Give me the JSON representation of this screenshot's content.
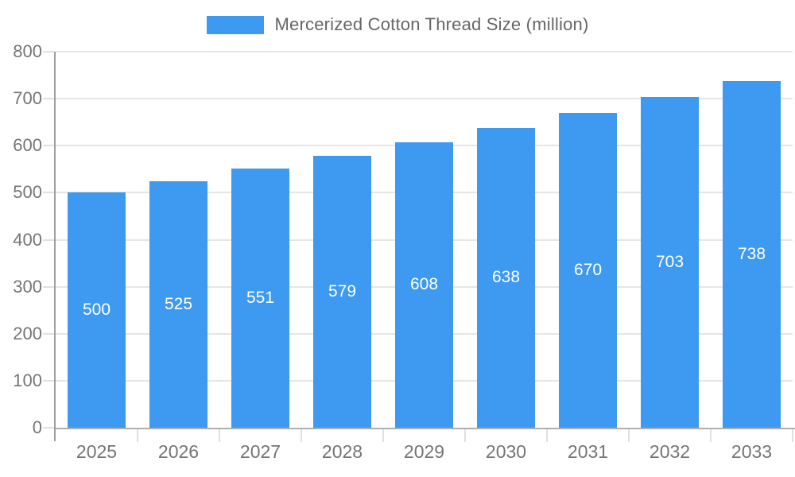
{
  "chart_data": {
    "type": "bar",
    "title": "Mercerized Cotton Thread Size (million)",
    "categories": [
      "2025",
      "2026",
      "2027",
      "2028",
      "2029",
      "2030",
      "2031",
      "2032",
      "2033"
    ],
    "values": [
      500,
      525,
      551,
      579,
      608,
      638,
      670,
      703,
      738
    ],
    "xlabel": "",
    "ylabel": "",
    "ylim": [
      0,
      800
    ],
    "ytick_step": 100,
    "grid": true,
    "legend_position": "top",
    "value_labels": "inside-center",
    "colors": {
      "bar": "#3D9AF0",
      "value_label": "#FFFFFF",
      "grid": "#E6E6E6",
      "outer_tick": "#E0E0E0",
      "y_axis_line": "#9E9E9E",
      "x_axis_line": "#AFAFAF",
      "axis_text": "#757575",
      "legend_text": "#666666"
    }
  }
}
